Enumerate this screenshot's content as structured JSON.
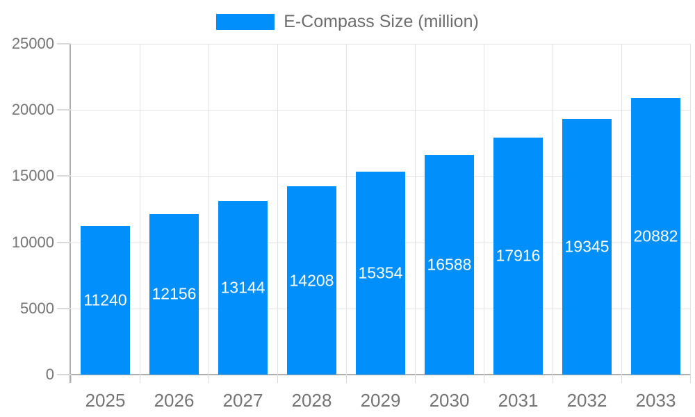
{
  "legend": {
    "label": "E-Compass Size (million)",
    "swatch_color": "#008FFB"
  },
  "chart_data": {
    "type": "bar",
    "title": "",
    "series_name": "E-Compass Size (million)",
    "categories": [
      "2025",
      "2026",
      "2027",
      "2028",
      "2029",
      "2030",
      "2031",
      "2032",
      "2033"
    ],
    "values": [
      11240,
      12156,
      13144,
      14208,
      15354,
      16588,
      17916,
      19345,
      20882
    ],
    "xlabel": "",
    "ylabel": "",
    "ylim": [
      0,
      25000
    ],
    "yticks": [
      0,
      5000,
      10000,
      15000,
      20000,
      25000
    ],
    "grid": true,
    "legend_position": "top-center",
    "bar_color": "#008FFB",
    "bar_label_color": "#FFFFFF",
    "axis_text_color": "#757575",
    "grid_color": "#E2E2E2",
    "axis_line_color": "#AEAEAE"
  }
}
